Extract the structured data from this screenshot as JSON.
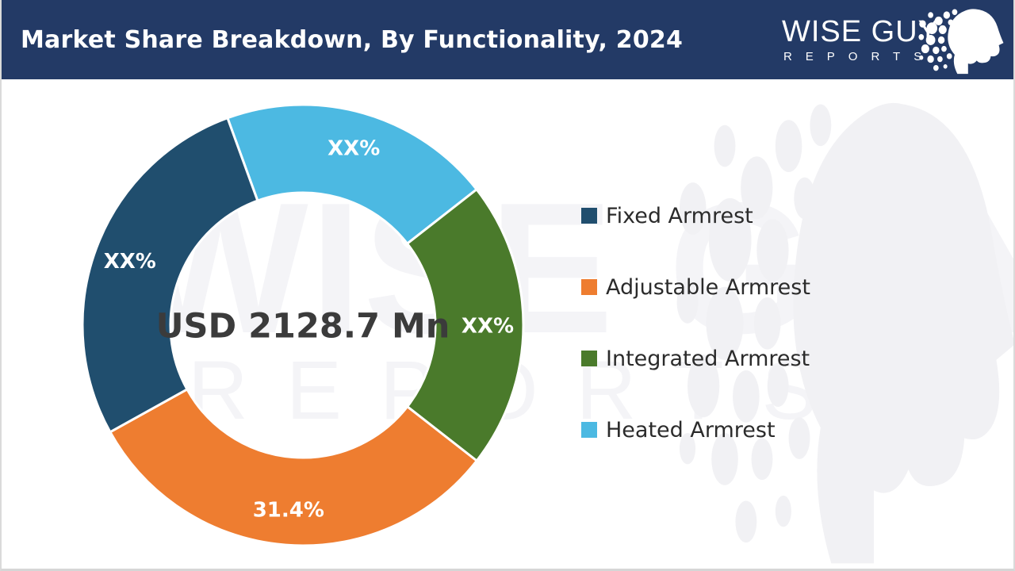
{
  "header": {
    "title": "Market Share Breakdown, By Functionality, 2024",
    "logo": {
      "name": "WISE GUY",
      "sub": "REPORTS"
    }
  },
  "watermark": {
    "line1": "WISE GUY",
    "line2": "REPORTS"
  },
  "chart_data": {
    "type": "pie",
    "donut": true,
    "hole_radius_ratio": 0.6,
    "title": "Market Share Breakdown, By Functionality, 2024",
    "center_label": "USD 2128.7 Mn",
    "start_angle_deg": 110,
    "direction": "counterclockwise",
    "legend_position": "right",
    "categories": [
      "Fixed Armrest",
      "Adjustable Armrest",
      "Integrated Armrest",
      "Heated Armrest"
    ],
    "values": [
      27.5,
      31.4,
      21.1,
      20.0
    ],
    "slice_labels": [
      "XX%",
      "31.4%",
      "XX%",
      "XX%"
    ],
    "colors": [
      "#204e6e",
      "#ee7d30",
      "#4a7a2b",
      "#4cb9e2"
    ]
  },
  "colors": {
    "header_bg": "#233a66",
    "center_text": "#3b3b3b",
    "legend_text": "#2b2b2b",
    "watermark": "#f4f4f7",
    "slice_gap": "#ffffff"
  }
}
